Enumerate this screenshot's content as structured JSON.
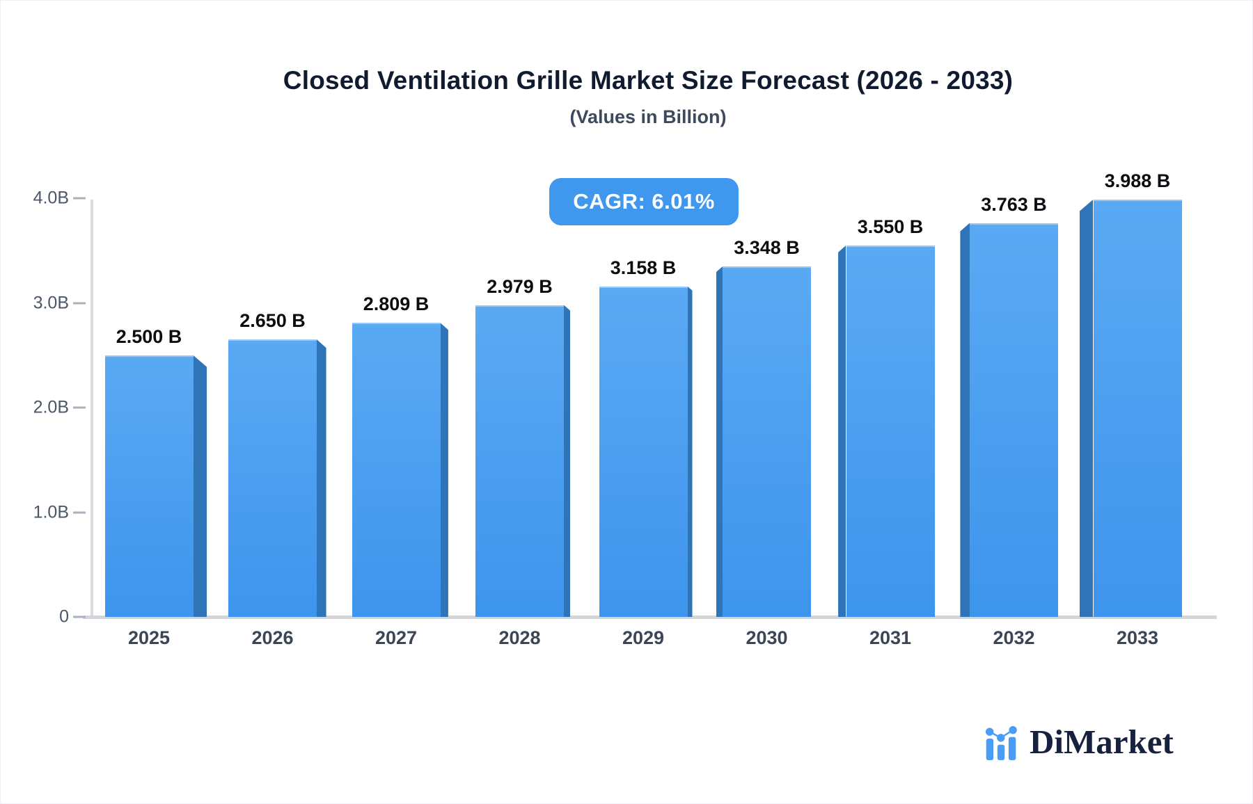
{
  "header": {
    "title": "Closed Ventilation Grille Market Size Forecast (2026 - 2033)",
    "subtitle": "(Values in Billion)"
  },
  "badge": {
    "text": "CAGR: 6.01%"
  },
  "chart_data": {
    "type": "bar",
    "title": "Closed Ventilation Grille Market Size Forecast (2026 - 2033)",
    "subtitle": "(Values in Billion)",
    "cagr": "6.01%",
    "categories": [
      "2025",
      "2026",
      "2027",
      "2028",
      "2029",
      "2030",
      "2031",
      "2032",
      "2033"
    ],
    "values": [
      2.5,
      2.65,
      2.809,
      2.979,
      3.158,
      3.348,
      3.55,
      3.763,
      3.988
    ],
    "value_labels": [
      "2.500 B",
      "2.650 B",
      "2.809 B",
      "2.979 B",
      "3.158 B",
      "3.348 B",
      "3.550 B",
      "3.763 B",
      "3.988 B"
    ],
    "y_ticks": [
      {
        "label": "4.0B",
        "value": 4.0
      },
      {
        "label": "3.0B",
        "value": 3.0
      },
      {
        "label": "2.0B",
        "value": 2.0
      },
      {
        "label": "1.0B",
        "value": 1.0
      },
      {
        "label": "0",
        "value": 0.0
      }
    ],
    "ylim": [
      0,
      4.0
    ],
    "xlabel": "",
    "ylabel": "",
    "legend": "none",
    "grid": "off",
    "colors": {
      "bar_gradient_top": "#5aa9f3",
      "bar_gradient_bottom": "#3e95ed",
      "bar_side": "#2e74b6",
      "accent_badge": "#3f97ee",
      "axis_line": "#d9dce1",
      "tick_text": "#4a5768"
    }
  },
  "branding": {
    "logo_text": "DiMarket",
    "logo_icon": "mini-bar-chart-icon",
    "logo_color": "#4a9cf5",
    "logo_text_color": "#16213e"
  }
}
